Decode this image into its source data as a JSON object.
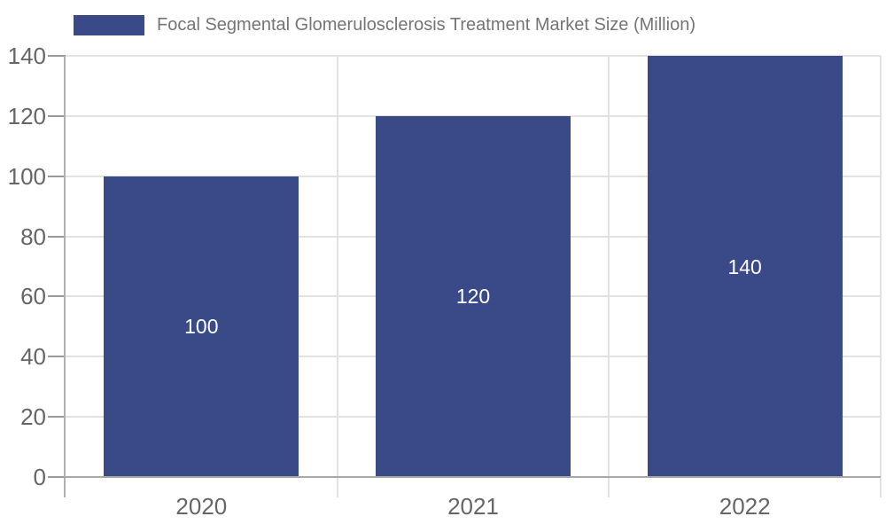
{
  "legend": {
    "label": "Focal Segmental Glomerulosclerosis Treatment Market Size (Million)"
  },
  "chart_data": {
    "type": "bar",
    "title": "",
    "series_name": "Focal Segmental Glomerulosclerosis Treatment Market Size (Million)",
    "categories": [
      "2020",
      "2021",
      "2022"
    ],
    "values": [
      100,
      120,
      140
    ],
    "xlabel": "",
    "ylabel": "",
    "ylim": [
      0,
      140
    ],
    "yticks": [
      0,
      20,
      40,
      60,
      80,
      100,
      120,
      140
    ],
    "grid": true,
    "legend_position": "top-center",
    "bar_color": "#3a4a89",
    "bar_label_color": "#ffffff"
  },
  "colors": {
    "background": "#ffffff",
    "axis_line": "#a8a8a8",
    "spine_line": "#b0b0b0",
    "grid_line": "#e2e2e2",
    "tick_mark": "#999999",
    "tick_text": "#666666",
    "legend_text": "#757575"
  }
}
